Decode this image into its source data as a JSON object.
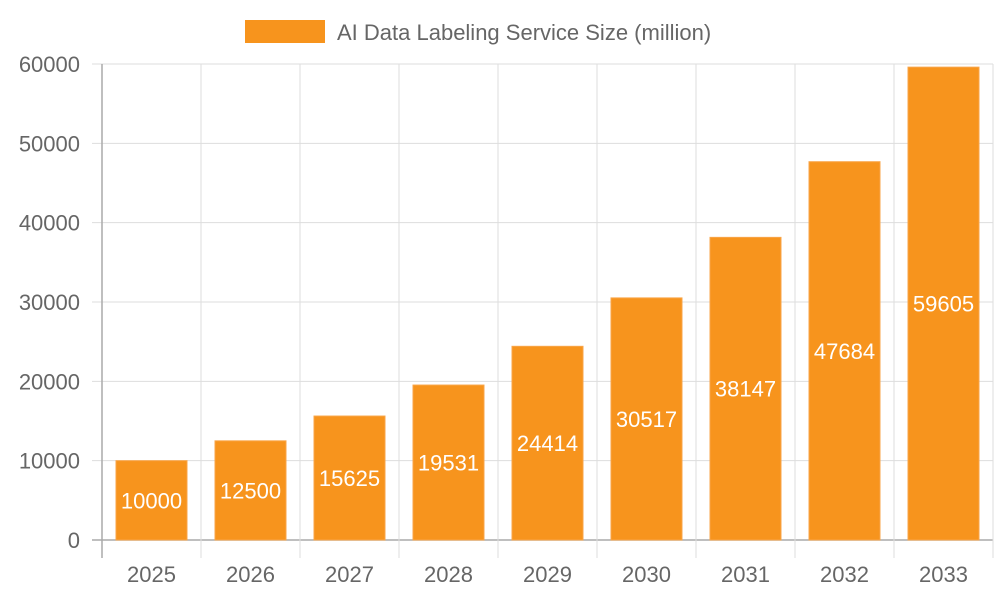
{
  "chart_data": {
    "type": "bar",
    "categories": [
      "2025",
      "2026",
      "2027",
      "2028",
      "2029",
      "2030",
      "2031",
      "2032",
      "2033"
    ],
    "series": [
      {
        "name": "AI Data Labeling Service Size (million)",
        "values": [
          10000,
          12500,
          15625,
          19531,
          24414,
          30517,
          38147,
          47684,
          59605
        ],
        "color": "#F7941D"
      }
    ],
    "ylim": [
      0,
      60000
    ],
    "yticks": [
      0,
      10000,
      20000,
      30000,
      40000,
      50000,
      60000
    ],
    "grid": true,
    "legend_position": "top",
    "data_labels": true,
    "label_color": "#FFFFFF",
    "text_color": "#666666"
  }
}
